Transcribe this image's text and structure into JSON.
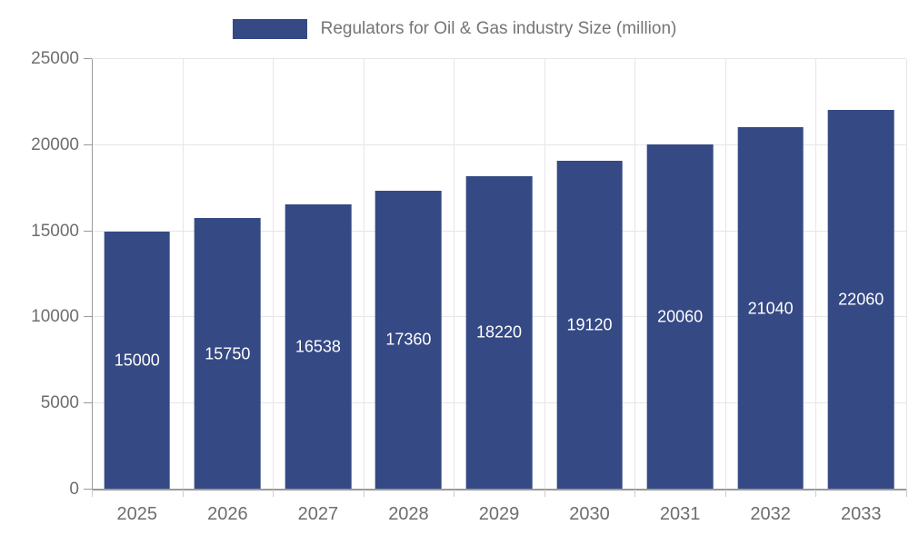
{
  "legend": {
    "label": "Regulators for Oil & Gas industry Size (million)",
    "swatch_color": "#354984"
  },
  "colors": {
    "bar": "#354984",
    "grid": "#e6e6e6",
    "axis": "#9a9a9a",
    "x_tick": "#cccccc",
    "axis_label_text": "#6e6e6e",
    "title_text": "#757575",
    "bar_value_text": "#ffffff",
    "background": "#ffffff"
  },
  "chart_data": {
    "type": "bar",
    "title": "Regulators for Oil & Gas industry Size (million)",
    "series_name": "Regulators for Oil & Gas industry Size (million)",
    "categories": [
      "2025",
      "2026",
      "2027",
      "2028",
      "2029",
      "2030",
      "2031",
      "2032",
      "2033"
    ],
    "values": [
      15000,
      15750,
      16538,
      17360,
      18220,
      19120,
      20060,
      21040,
      22060
    ],
    "xlabel": "",
    "ylabel": "",
    "ylim": [
      0,
      25000
    ],
    "yticks": [
      0,
      5000,
      10000,
      15000,
      20000,
      25000
    ],
    "grid": true,
    "legend_position": "top-center",
    "value_label_position": "inside-middle"
  }
}
